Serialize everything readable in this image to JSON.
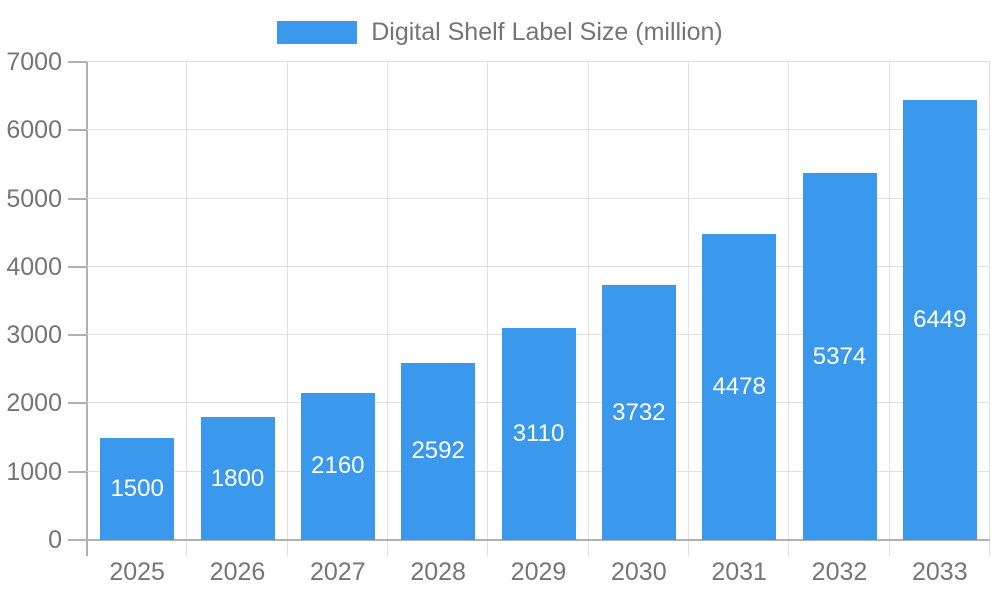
{
  "chart_data": {
    "type": "bar",
    "title": "",
    "categories": [
      "2025",
      "2026",
      "2027",
      "2028",
      "2029",
      "2030",
      "2031",
      "2032",
      "2033"
    ],
    "series": [
      {
        "name": "Digital Shelf Label Size (million)",
        "values": [
          1500,
          1800,
          2160,
          2592,
          3110,
          3732,
          4478,
          5374,
          6449
        ]
      }
    ],
    "xlabel": "",
    "ylabel": "",
    "ylim": [
      0,
      7000
    ],
    "ytick_step": 1000,
    "yticks": [
      0,
      1000,
      2000,
      3000,
      4000,
      5000,
      6000,
      7000
    ],
    "grid": true,
    "legend_position": "top",
    "value_labels": "inside-center"
  },
  "colors": {
    "bar": "#3a99ec",
    "grid": "#e0e0e0",
    "axis": "#b1b1b1",
    "text": "#757575",
    "value_label": "#ffffff",
    "background": "#ffffff"
  }
}
